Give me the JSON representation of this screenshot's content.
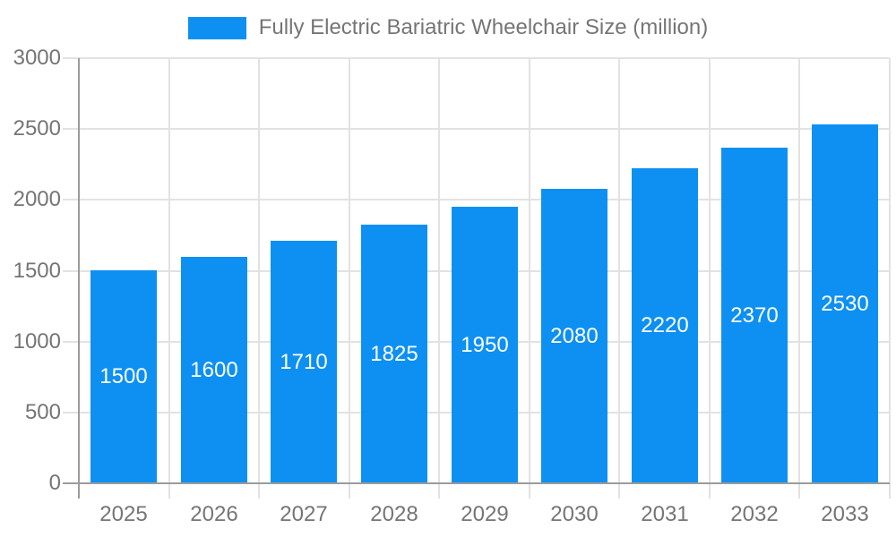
{
  "legend": {
    "label": "Fully Electric Bariatric Wheelchair Size (million)"
  },
  "chart_data": {
    "type": "bar",
    "title": "Fully Electric Bariatric Wheelchair Size (million)",
    "series_name": "Fully Electric Bariatric Wheelchair Size (million)",
    "categories": [
      "2025",
      "2026",
      "2027",
      "2028",
      "2029",
      "2030",
      "2031",
      "2032",
      "2033"
    ],
    "values": [
      1500,
      1600,
      1710,
      1825,
      1950,
      2080,
      2220,
      2370,
      2530
    ],
    "xlabel": "",
    "ylabel": "",
    "ylim": [
      0,
      3000
    ],
    "yticks": [
      0,
      500,
      1000,
      1500,
      2000,
      2500,
      3000
    ],
    "grid": true,
    "legend_position": "top",
    "colors": {
      "bar": "#0e90f2",
      "value_label": "#ffffff",
      "grid": "#e2e2e2",
      "axis": "#9b9b9b",
      "tick_text": "#757575"
    }
  }
}
